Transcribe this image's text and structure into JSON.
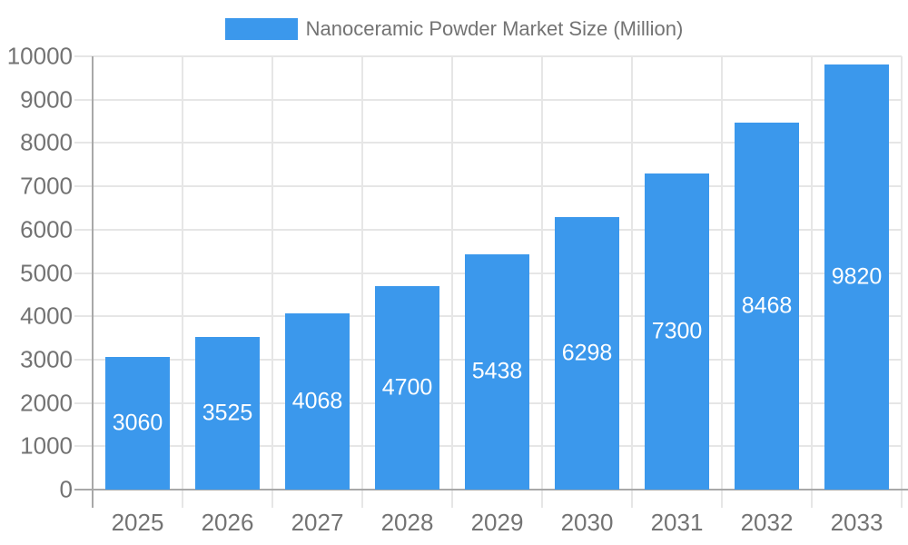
{
  "chart_data": {
    "type": "bar",
    "title": "Nanoceramic Powder Market Size (Million)",
    "legend": {
      "position": "top",
      "label": "Nanoceramic Powder Market Size (Million)"
    },
    "categories": [
      "2025",
      "2026",
      "2027",
      "2028",
      "2029",
      "2030",
      "2031",
      "2032",
      "2033"
    ],
    "series": [
      {
        "name": "Nanoceramic Powder Market Size (Million)",
        "values": [
          3060,
          3525,
          4068,
          4700,
          5438,
          6298,
          7300,
          8468,
          9820
        ]
      }
    ],
    "data_labels_shown": true,
    "xlabel": "",
    "ylabel": "",
    "ylim": [
      0,
      10000
    ],
    "y_tick_step": 1000,
    "y_tick_labels": [
      "0",
      "1000",
      "2000",
      "3000",
      "4000",
      "5000",
      "6000",
      "7000",
      "8000",
      "9000",
      "10000"
    ],
    "grid": "on",
    "colors": {
      "bar": "#3b98ec",
      "bar_label_text": "#ffffff",
      "grid_line": "#e6e6e6",
      "axis_line": "#a8a8a8",
      "axis_text": "#737373",
      "background": "#ffffff"
    }
  }
}
